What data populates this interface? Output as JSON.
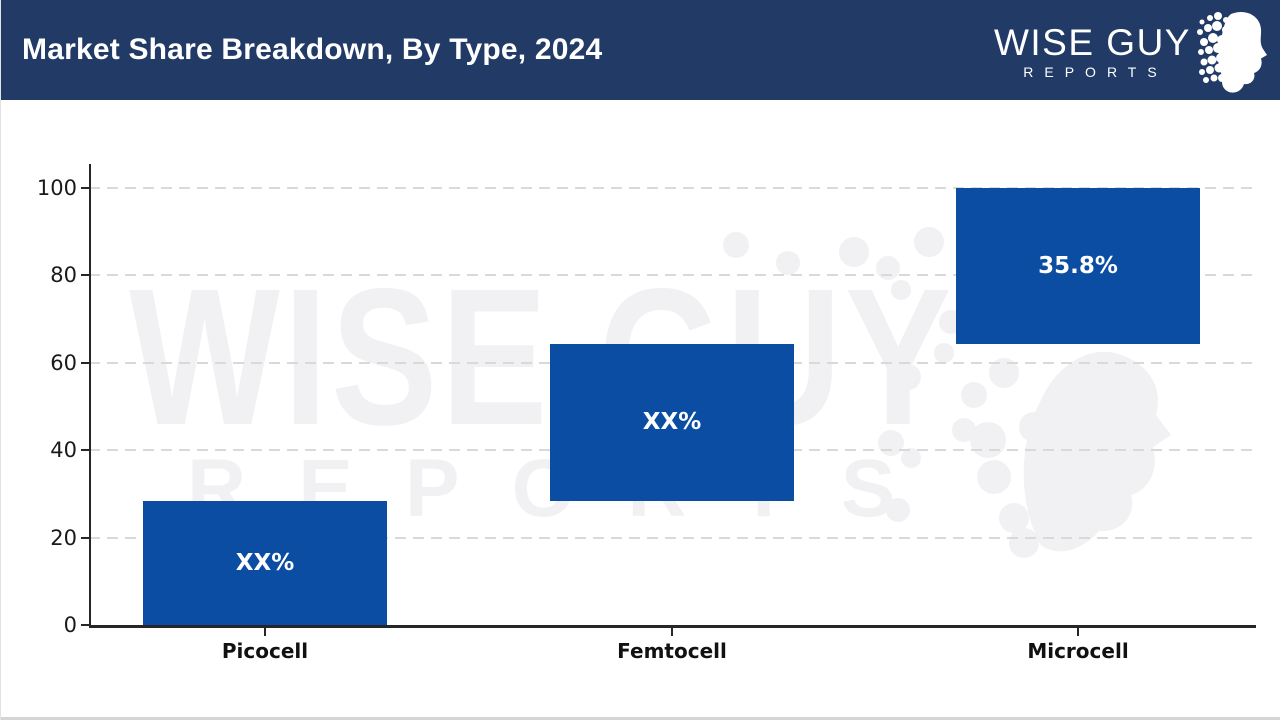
{
  "header": {
    "title": "Market Share Breakdown, By Type, 2024",
    "logo_line1": "WISE GUY",
    "logo_line2": "REPORTS"
  },
  "watermark": {
    "line1": "WISE GUY",
    "line2": "REPORTS"
  },
  "colors": {
    "header_bg": "#213A66",
    "bar": "#0B4DA2",
    "grid": "#D9D9D9",
    "axis": "#262626",
    "bar_label": "#FFFFFF",
    "watermark": "#F1F1F4"
  },
  "chart_data": {
    "type": "bar",
    "subtype": "waterfall-stacked",
    "title": "Market Share Breakdown, By Type, 2024",
    "categories": [
      "Picocell",
      "Femtocell",
      "Microcell"
    ],
    "series": [
      {
        "name": "Picocell",
        "start": 0,
        "end": 28.4,
        "label": "XX%"
      },
      {
        "name": "Femtocell",
        "start": 28.4,
        "end": 64.2,
        "label": "XX%"
      },
      {
        "name": "Microcell",
        "start": 64.2,
        "end": 100,
        "label": "35.8%"
      }
    ],
    "xlabel": "",
    "ylabel": "",
    "ylim": [
      0,
      100
    ],
    "yticks": [
      0,
      20,
      40,
      60,
      80,
      100
    ],
    "grid": "horizontal-dashed",
    "legend": "none",
    "bar_value_labels_inside": true
  }
}
